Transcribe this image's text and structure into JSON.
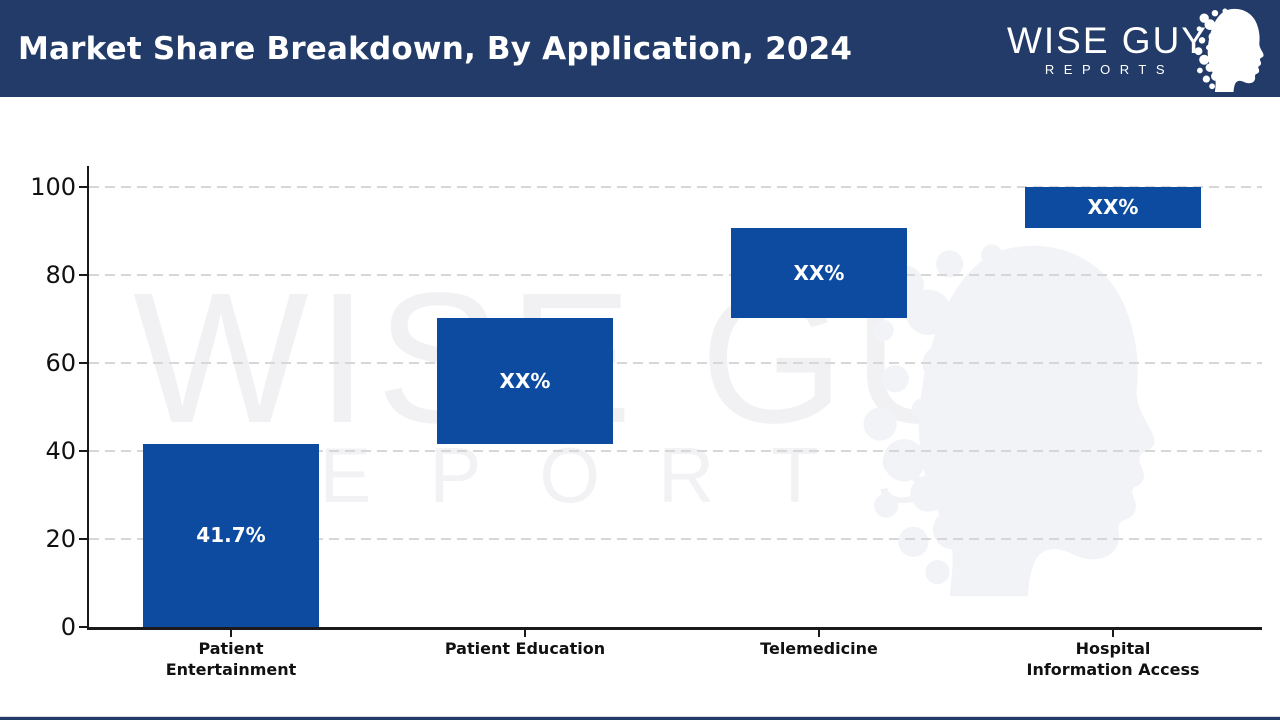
{
  "header": {
    "title": "Market Share Breakdown, By Application, 2024",
    "logo": {
      "line1": "WISE GUY",
      "line2": "REPORTS",
      "head_icon": "head-profile-dots-icon"
    }
  },
  "watermark": {
    "line1": "WISE GUY",
    "line2": "REPORTS",
    "head_icon": "head-profile-dots-icon"
  },
  "colors": {
    "header_bg": "#223b68",
    "bar": "#0d4ba1",
    "bar_label": "#ffffff",
    "gridline": "#d7d7d7",
    "axis": "#1a1a1a",
    "watermark": "#f1f1f4"
  },
  "chart_data": {
    "type": "bar",
    "subtype": "waterfall",
    "title": "Market Share Breakdown, By Application, 2024",
    "xlabel": "",
    "ylabel": "",
    "ylim": [
      0,
      105
    ],
    "yticks": [
      0,
      20,
      40,
      60,
      80,
      100
    ],
    "grid": "horizontal-dashed",
    "legend": "none",
    "bar_color": "#0d4ba1",
    "label_color": "#ffffff",
    "categories": [
      [
        "Patient",
        "Entertainment"
      ],
      [
        "Patient Education"
      ],
      [
        "Telemedicine"
      ],
      [
        "Hospital",
        "Information Access"
      ]
    ],
    "segments": [
      {
        "category": "Patient Entertainment",
        "start": 0,
        "end": 41.7,
        "label": "41.7%"
      },
      {
        "category": "Patient Education",
        "start": 41.7,
        "end": 70.2,
        "label": "XX%"
      },
      {
        "category": "Telemedicine",
        "start": 70.2,
        "end": 90.7,
        "label": "XX%"
      },
      {
        "category": "Hospital Information Access",
        "start": 90.7,
        "end": 100,
        "label": "XX%"
      }
    ]
  }
}
